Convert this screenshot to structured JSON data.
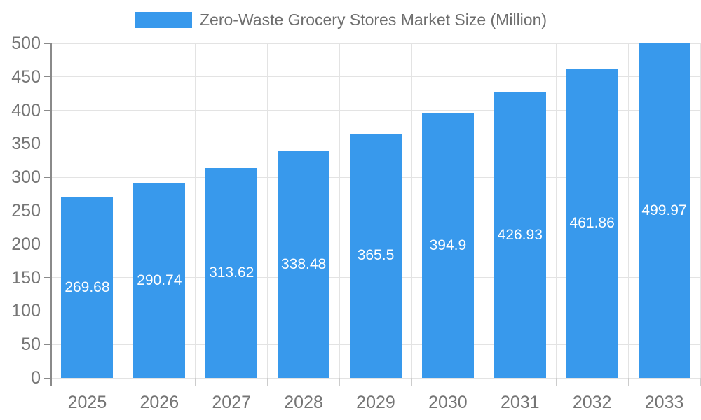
{
  "legend": {
    "label": "Zero-Waste Grocery Stores Market Size (Million)"
  },
  "chart_data": {
    "type": "bar",
    "title": "Zero-Waste Grocery Stores Market Size (Million)",
    "categories": [
      "2025",
      "2026",
      "2027",
      "2028",
      "2029",
      "2030",
      "2031",
      "2032",
      "2033"
    ],
    "series": [
      {
        "name": "Zero-Waste Grocery Stores Market Size (Million)",
        "values": [
          269.68,
          290.74,
          313.62,
          338.48,
          365.5,
          394.9,
          426.93,
          461.86,
          499.97
        ]
      }
    ],
    "value_labels": [
      "269.68",
      "290.74",
      "313.62",
      "338.48",
      "365.5",
      "394.9",
      "426.93",
      "461.86",
      "499.97"
    ],
    "xlabel": "",
    "ylabel": "",
    "ylim": [
      0,
      500
    ],
    "ytick_step": 50,
    "grid": true,
    "legend_position": "top",
    "value_label_position": "inside-center"
  },
  "colors": {
    "bar": "#3899ec",
    "gridline": "#e3e3e3",
    "axis_line": "#8a8a8a",
    "x_tick": "#cccccc",
    "axis_text": "#757575",
    "legend_text": "#6e6e6e",
    "value_label_text": "#ffffff",
    "background": "#ffffff"
  }
}
